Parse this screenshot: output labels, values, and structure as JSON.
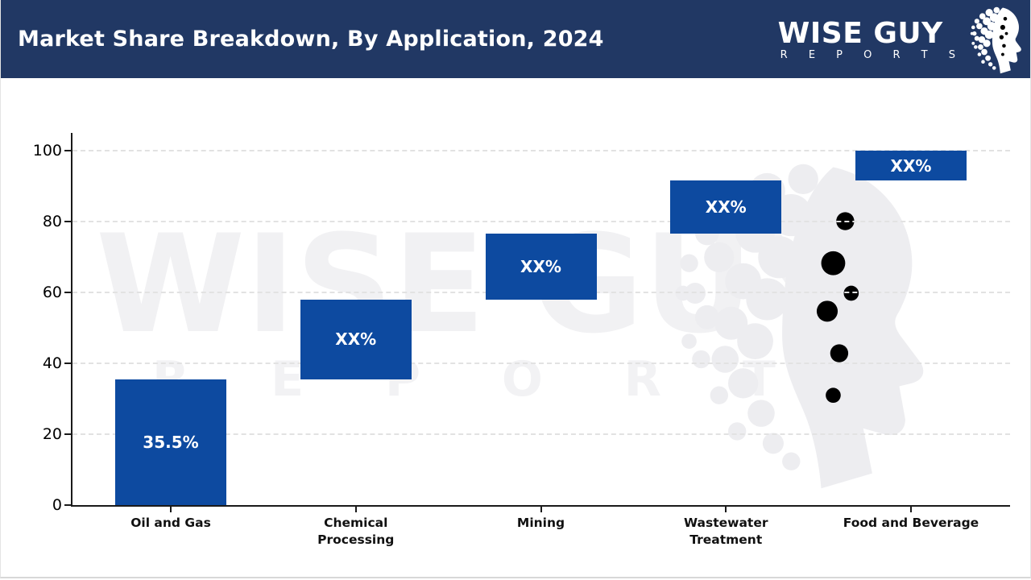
{
  "header": {
    "title": "Market Share Breakdown, By Application, 2024",
    "background_color": "#213864",
    "logo": {
      "line1": "WISE GUY",
      "line2": "R E P O R T S",
      "icon": "dotted-head-silhouette"
    }
  },
  "watermark": {
    "line1": "WISE GUY",
    "line2": "R E P O R T S",
    "icon": "dotted-head-silhouette"
  },
  "chart_data": {
    "type": "bar",
    "subtype": "waterfall",
    "title": "Market Share Breakdown, By Application, 2024",
    "xlabel": "",
    "ylabel": "",
    "ylim": [
      0,
      105
    ],
    "grid": "dashed-horizontal",
    "legend": "none",
    "bar_color": "#0d4aa0",
    "value_label_color": "#ffffff",
    "axis_color": "#1a1a1a",
    "y_axis": {
      "ticks": [
        0,
        20,
        40,
        60,
        80,
        100
      ]
    },
    "categories": [
      {
        "name": "Oil and Gas",
        "lines": [
          "Oil and Gas"
        ]
      },
      {
        "name": "Chemical Processing",
        "lines": [
          "Chemical",
          "Processing"
        ]
      },
      {
        "name": "Mining",
        "lines": [
          "Mining"
        ]
      },
      {
        "name": "Wastewater Treatment",
        "lines": [
          "Wastewater",
          "Treatment"
        ]
      },
      {
        "name": "Food and Beverage",
        "lines": [
          "Food and Beverage"
        ]
      }
    ],
    "segments": [
      {
        "category": "Oil and Gas",
        "start": 0,
        "end": 35.5,
        "value": 35.5,
        "label": "35.5%"
      },
      {
        "category": "Chemical Processing",
        "start": 35.5,
        "end": 58,
        "value": 22.5,
        "label": "XX%"
      },
      {
        "category": "Mining",
        "start": 58,
        "end": 76.5,
        "value": 18.5,
        "label": "XX%"
      },
      {
        "category": "Wastewater Treatment",
        "start": 76.5,
        "end": 91.5,
        "value": 15,
        "label": "XX%"
      },
      {
        "category": "Food and Beverage",
        "start": 91.5,
        "end": 100,
        "value": 8.5,
        "label": "XX%"
      }
    ]
  }
}
